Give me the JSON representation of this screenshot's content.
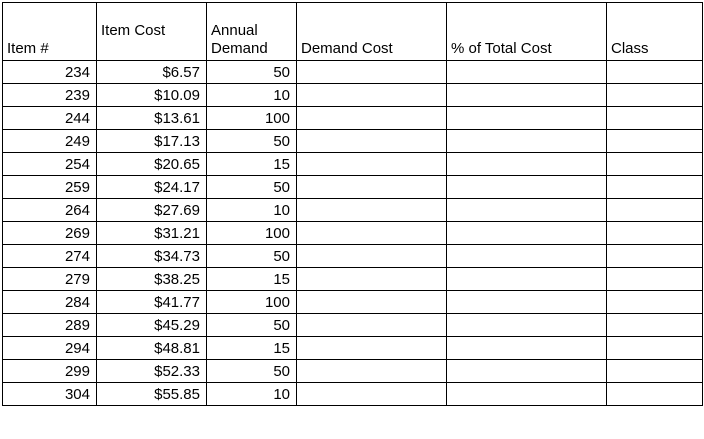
{
  "table": {
    "headers": [
      "Item #",
      "Item Cost",
      "Annual Demand",
      "Demand Cost",
      "% of Total Cost",
      "Class"
    ],
    "col_keys": [
      "item-number",
      "item-cost",
      "annual-demand",
      "demand-cost",
      "pct-of-total-cost",
      "class"
    ],
    "rows": [
      [
        "234",
        "$6.57",
        "50",
        "",
        "",
        ""
      ],
      [
        "239",
        "$10.09",
        "10",
        "",
        "",
        ""
      ],
      [
        "244",
        "$13.61",
        "100",
        "",
        "",
        ""
      ],
      [
        "249",
        "$17.13",
        "50",
        "",
        "",
        ""
      ],
      [
        "254",
        "$20.65",
        "15",
        "",
        "",
        ""
      ],
      [
        "259",
        "$24.17",
        "50",
        "",
        "",
        ""
      ],
      [
        "264",
        "$27.69",
        "10",
        "",
        "",
        ""
      ],
      [
        "269",
        "$31.21",
        "100",
        "",
        "",
        ""
      ],
      [
        "274",
        "$34.73",
        "50",
        "",
        "",
        ""
      ],
      [
        "279",
        "$38.25",
        "15",
        "",
        "",
        ""
      ],
      [
        "284",
        "$41.77",
        "100",
        "",
        "",
        ""
      ],
      [
        "289",
        "$45.29",
        "50",
        "",
        "",
        ""
      ],
      [
        "294",
        "$48.81",
        "15",
        "",
        "",
        ""
      ],
      [
        "299",
        "$52.33",
        "50",
        "",
        "",
        ""
      ],
      [
        "304",
        "$55.85",
        "10",
        "",
        "",
        ""
      ]
    ],
    "colors": {
      "grid_line": "#000000",
      "cell_background": "#ffffff",
      "text": "#000000"
    }
  }
}
